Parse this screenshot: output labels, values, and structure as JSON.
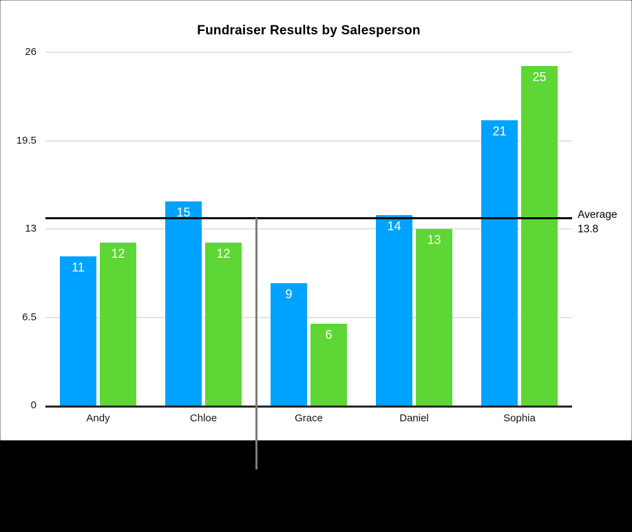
{
  "chart_data": {
    "type": "bar",
    "title": "Fundraiser Results by Salesperson",
    "categories": [
      "Andy",
      "Chloe",
      "Grace",
      "Daniel",
      "Sophia"
    ],
    "series": [
      {
        "name": "blue",
        "color": "#00A2FF",
        "values": [
          11,
          15,
          9,
          14,
          21
        ]
      },
      {
        "name": "green",
        "color": "#5ED636",
        "values": [
          12,
          12,
          6,
          13,
          25
        ]
      }
    ],
    "bar_value_labels_shown": true,
    "y_ticks": [
      "0",
      "6.5",
      "13",
      "19.5",
      "26"
    ],
    "ylim": [
      0,
      26
    ],
    "grid": true,
    "legend": "none",
    "annotation": {
      "type": "horizontal-reference-line",
      "value": 13.8,
      "label_line1": "Average",
      "label_line2": "13.8",
      "line_color": "#000000"
    }
  },
  "decorations": {
    "divider_line_color": "#7d7d7d",
    "panel_background": "#ffffff",
    "panel_border_color": "#9f9f9f",
    "area_below_color": "#000000"
  }
}
